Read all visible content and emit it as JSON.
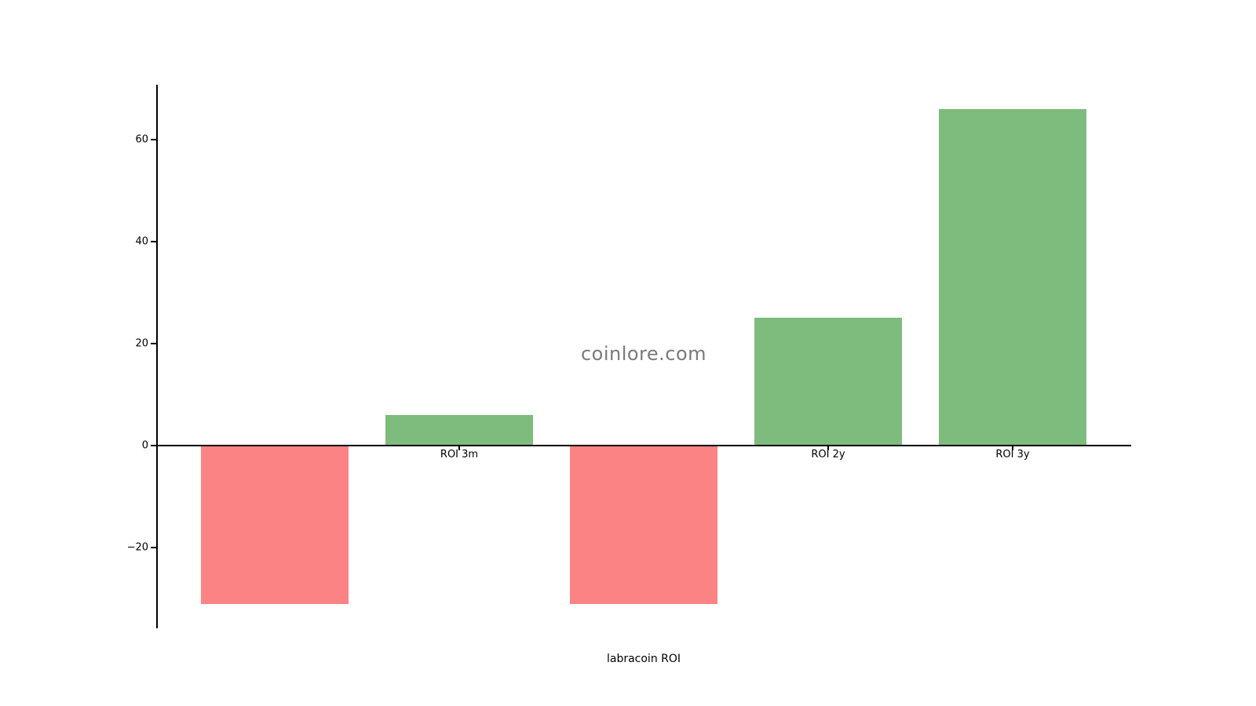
{
  "chart_data": {
    "type": "bar",
    "title": "",
    "xlabel": "labracoin ROI",
    "ylabel": "",
    "watermark": "coinlore.com",
    "categories": [
      "",
      "ROI 3m",
      "",
      "ROI 2y",
      "ROI 3y"
    ],
    "values": [
      -31,
      6,
      -31,
      25,
      66
    ],
    "ylim": [
      -36,
      71
    ],
    "y_ticks": [
      {
        "value": 60,
        "label": "60"
      },
      {
        "value": 40,
        "label": "40"
      },
      {
        "value": 20,
        "label": "20"
      },
      {
        "value": 0,
        "label": "0"
      },
      {
        "value": -20,
        "label": "−20"
      }
    ],
    "grid": false,
    "legend": null,
    "colors": {
      "positive": "#7ebc7e",
      "negative": "#fb8383",
      "axis": "#000000",
      "tick_text": "#000000",
      "watermark": "#7a7a7a"
    }
  }
}
